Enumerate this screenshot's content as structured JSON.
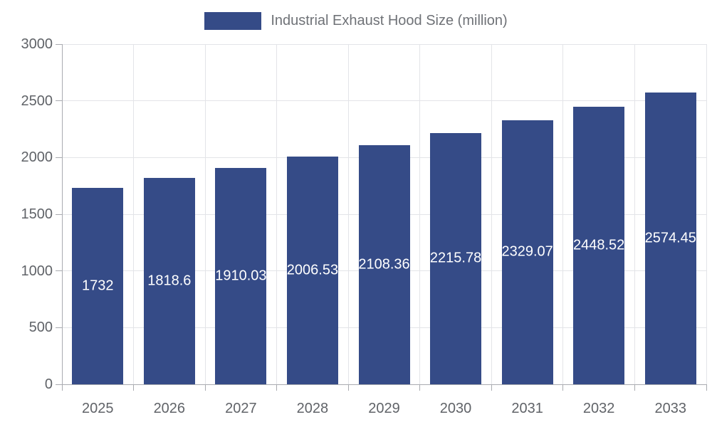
{
  "legend": {
    "label": "Industrial Exhaust Hood Size (million)"
  },
  "chart_data": {
    "type": "bar",
    "title": "Industrial Exhaust Hood Size (million)",
    "categories": [
      "2025",
      "2026",
      "2027",
      "2028",
      "2029",
      "2030",
      "2031",
      "2032",
      "2033"
    ],
    "values": [
      1732,
      1818.6,
      1910.03,
      2006.53,
      2108.36,
      2215.78,
      2329.07,
      2448.52,
      2574.45
    ],
    "bar_labels": [
      "1732",
      "1818.6",
      "1910.03",
      "2006.53",
      "2108.36",
      "2215.78",
      "2329.07",
      "2448.52",
      "2574.45"
    ],
    "xlabel": "",
    "ylabel": "",
    "ylim": [
      0,
      3000
    ],
    "yticks": [
      0,
      500,
      1000,
      1500,
      2000,
      2500,
      3000
    ],
    "grid": true,
    "legend_position": "top-center",
    "colors": {
      "bar": "#354B87",
      "grid": "#E3E4E8",
      "axis": "#A9ABB0",
      "axis_label": "#606368",
      "legend_text": "#6F7277",
      "bar_label": "#FFFFFF",
      "background": "#FFFFFF"
    }
  }
}
